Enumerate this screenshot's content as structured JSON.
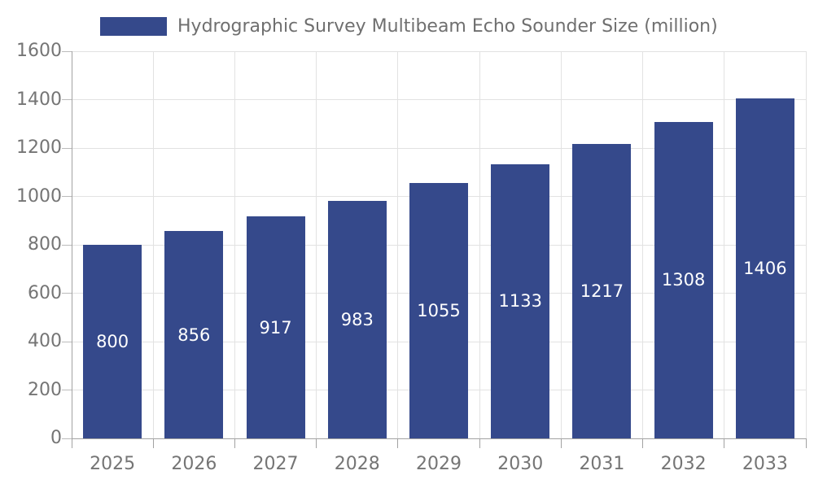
{
  "chart_data": {
    "type": "bar",
    "title": "",
    "legend": "Hydrographic Survey Multibeam Echo Sounder Size (million)",
    "categories": [
      "2025",
      "2026",
      "2027",
      "2028",
      "2029",
      "2030",
      "2031",
      "2032",
      "2033"
    ],
    "values": [
      800,
      856,
      917,
      983,
      1055,
      1133,
      1217,
      1308,
      1406
    ],
    "yticks": [
      0,
      200,
      400,
      600,
      800,
      1000,
      1200,
      1400,
      1600
    ],
    "ylim": [
      0,
      1600
    ],
    "xlabel": "",
    "ylabel": "",
    "grid": true,
    "legend_position": "top-left",
    "bar_value_labels": [
      "800",
      "856",
      "917",
      "983",
      "1055",
      "1133",
      "1217",
      "1308",
      "1406"
    ],
    "colors": {
      "bar": "#35498b",
      "grid": "#e2e2e2",
      "axis": "#a2a2a2",
      "tick": "#bbbbbb",
      "tick_label": "#757575",
      "bar_label": "#ffffff",
      "legend_text": "#6f6f6f",
      "background": "#ffffff"
    }
  }
}
